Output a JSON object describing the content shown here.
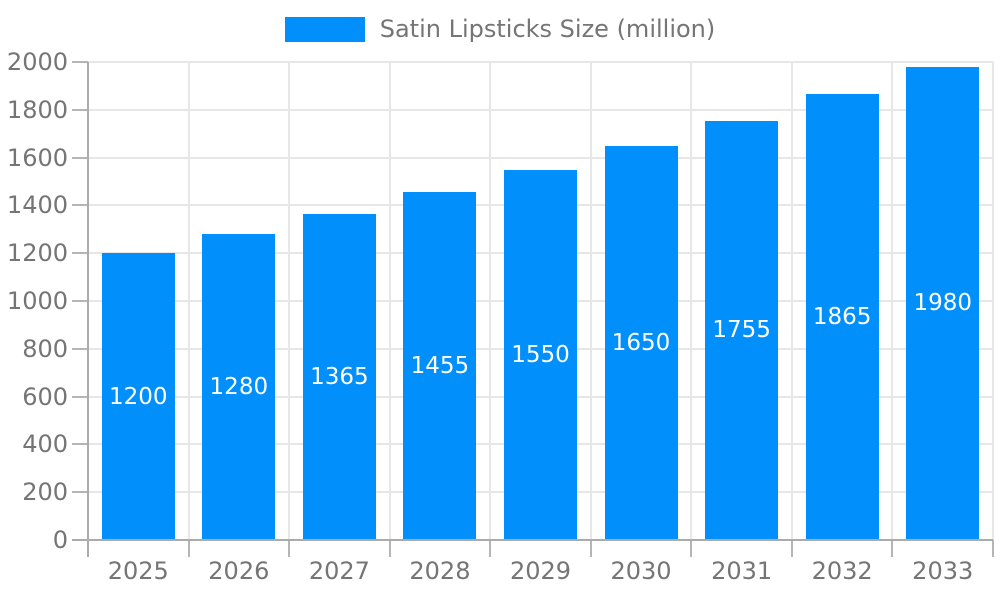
{
  "legend": {
    "label": "Satin Lipsticks Size (million)"
  },
  "chart_data": {
    "type": "bar",
    "title": "Satin Lipsticks Size (million)",
    "categories": [
      "2025",
      "2026",
      "2027",
      "2028",
      "2029",
      "2030",
      "2031",
      "2032",
      "2033"
    ],
    "series": [
      {
        "name": "Satin Lipsticks Size (million)",
        "values": [
          1200,
          1280,
          1365,
          1455,
          1550,
          1650,
          1755,
          1865,
          1980
        ]
      }
    ],
    "xlabel": "",
    "ylabel": "",
    "ylim": [
      0,
      2000
    ],
    "ytick_step": 200,
    "grid": true,
    "legend_position": "top",
    "colors": {
      "bar": "#008FFB",
      "value_label": "#ffffff",
      "axis_label": "#757575",
      "axis_line": "#ababab",
      "tick": "#b5b5b5",
      "gridline": "#e7e7e7",
      "background": "#ffffff"
    }
  }
}
